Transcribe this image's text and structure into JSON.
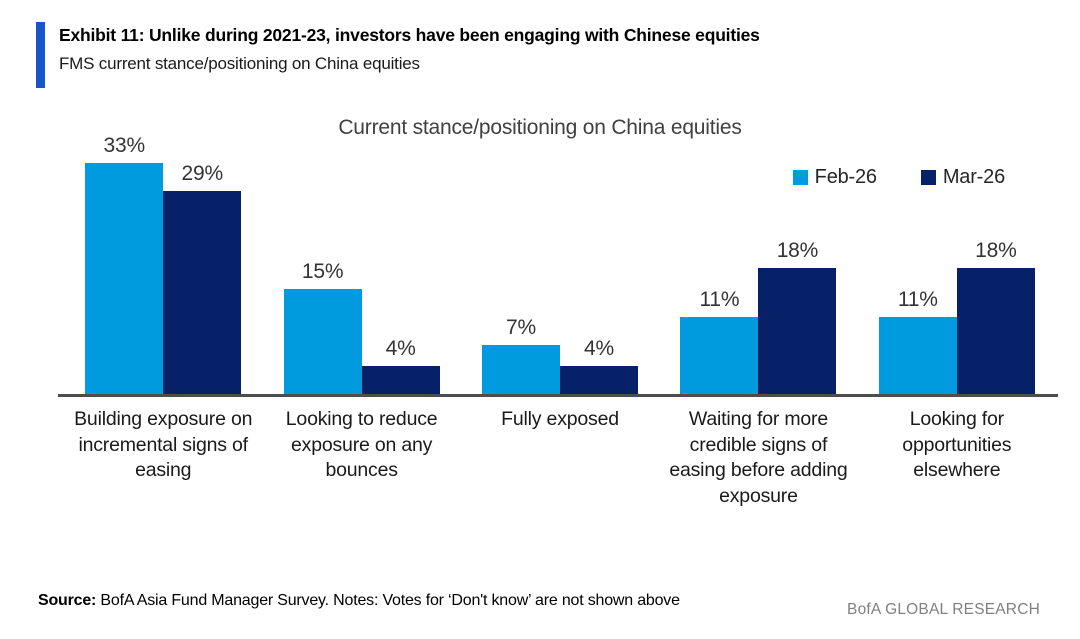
{
  "header": {
    "title": "Exhibit 11: Unlike during 2021-23, investors have been engaging with Chinese equities",
    "subtitle": "FMS current stance/positioning on China equities",
    "accent_color": "#1656c8"
  },
  "chart_data": {
    "type": "bar",
    "title": "Current stance/positioning on China equities",
    "categories": [
      "Building exposure on incremental signs of easing",
      "Looking to reduce exposure on any bounces",
      "Fully exposed",
      "Waiting for more credible signs of easing before adding exposure",
      "Looking for opportunities elsewhere"
    ],
    "series": [
      {
        "name": "Feb-26",
        "color": "#009ade",
        "values": [
          33,
          15,
          7,
          11,
          11
        ]
      },
      {
        "name": "Mar-26",
        "color": "#072169",
        "values": [
          29,
          4,
          4,
          18,
          18
        ]
      }
    ],
    "value_suffix": "%",
    "ylabel": "",
    "xlabel": "",
    "ylim": [
      0,
      35
    ],
    "grid": false,
    "data_labels": true,
    "legend_position": "top-right",
    "axis_line_color": "#4d4d4d"
  },
  "footer": {
    "source_label": "Source:",
    "source_text": " BofA Asia Fund Manager Survey. Notes: Votes for ‘Don't know’ are not shown above",
    "brand": "BofA GLOBAL RESEARCH"
  }
}
